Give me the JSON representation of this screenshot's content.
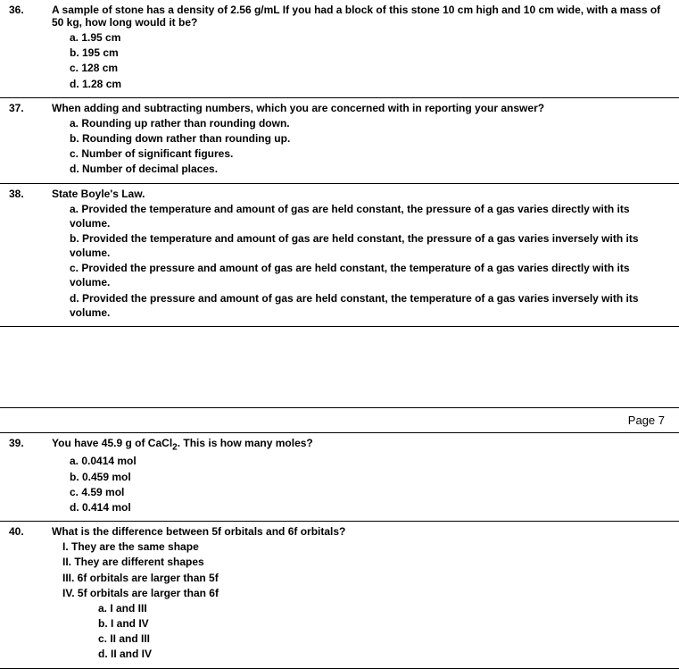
{
  "page_number_label": "Page 7",
  "questions": {
    "q36": {
      "num": "36.",
      "text": "A sample of stone has a density of 2.56 g/mL If you had a block of this stone 10 cm high and 10 cm wide, with a mass of 50 kg, how long would it be?",
      "a": "a. 1.95 cm",
      "b": "b. 195 cm",
      "c": "c. 128 cm",
      "d": "d. 1.28 cm"
    },
    "q37": {
      "num": "37.",
      "text": "When adding and subtracting numbers, which you are concerned with in reporting your answer?",
      "a": "a. Rounding up rather than rounding down.",
      "b": "b. Rounding down rather than rounding up.",
      "c": "c. Number of significant figures.",
      "d": "d. Number of decimal places."
    },
    "q38": {
      "num": "38.",
      "text": "State Boyle's Law.",
      "a": "a. Provided the temperature and amount of gas are held constant, the pressure of a gas varies directly with its volume.",
      "b": "b. Provided the temperature and amount of gas are held constant, the pressure of a gas varies inversely with its volume.",
      "c": "c. Provided the pressure and amount of gas are held constant, the temperature of a gas varies directly with its volume.",
      "d": "d. Provided the pressure and amount of gas are held constant, the temperature of a gas varies inversely with its volume."
    },
    "q39": {
      "num": "39.",
      "text_pre": "You have 45.9 g of CaCl",
      "text_sub": "2",
      "text_post": ". This is how many moles?",
      "a": "a. 0.0414 mol",
      "b": "b. 0.459 mol",
      "c": "c. 4.59 mol",
      "d": "d. 0.414 mol"
    },
    "q40": {
      "num": "40.",
      "text": "What is the difference between 5f orbitals and 6f orbitals?",
      "r1": "I. They are the same shape",
      "r2": "II.  They are different shapes",
      "r3": "III. 6f orbitals are larger than 5f",
      "r4": "IV. 5f orbitals are larger than 6f",
      "a": "a. I and III",
      "b": "b. I and IV",
      "c": "c. II and III",
      "d": "d. II and IV"
    }
  }
}
